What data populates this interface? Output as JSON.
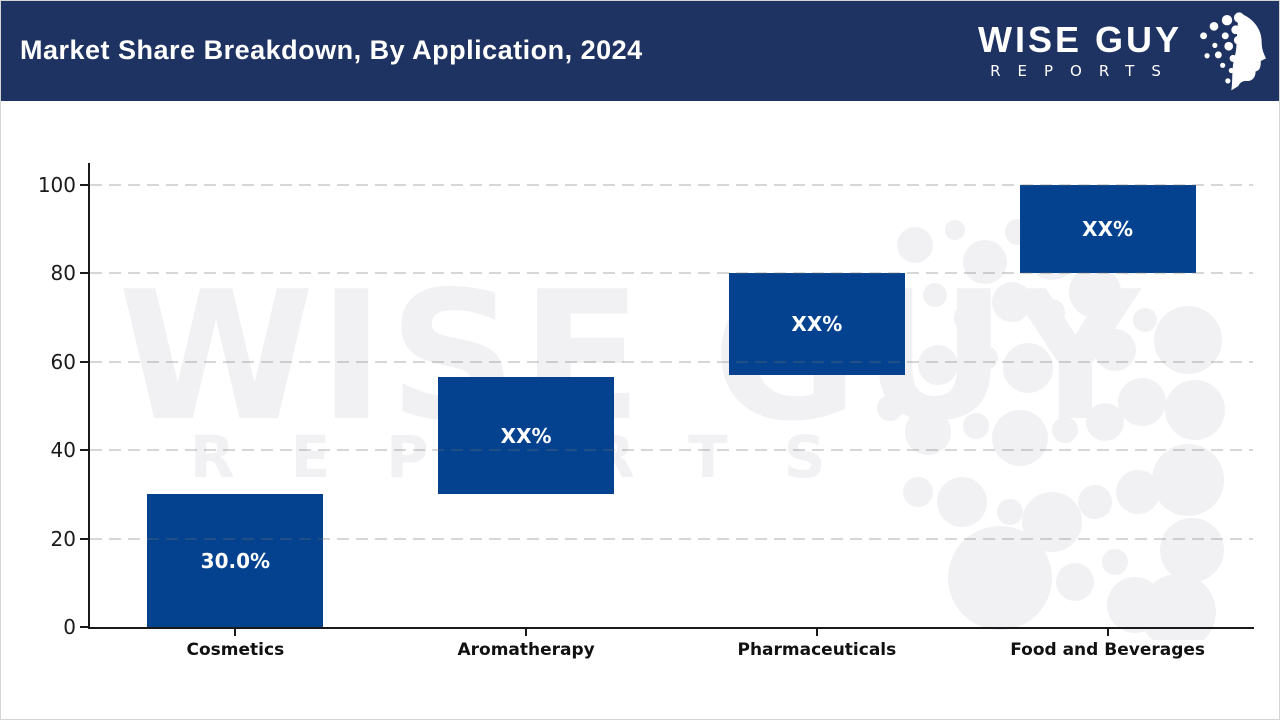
{
  "header": {
    "title": "Market Share Breakdown, By Application, 2024",
    "bg_color": "#1f3362",
    "logo": {
      "primary": "WISE GUY",
      "secondary": "REPORTS",
      "face_icon": "dotted-face-profile"
    }
  },
  "watermark": {
    "primary": "WISE GUY",
    "secondary": "REPORTS",
    "color": "#f1f1f4"
  },
  "chart_data": {
    "type": "bar",
    "variant": "waterfall",
    "title": "Market Share Breakdown, By Application, 2024",
    "categories": [
      "Cosmetics",
      "Aromatherapy",
      "Pharmaceuticals",
      "Food and Beverages"
    ],
    "series": [
      {
        "name": "Market Share",
        "segments": [
          {
            "category": "Cosmetics",
            "start": 0,
            "end": 30,
            "label": "30.0%"
          },
          {
            "category": "Aromatherapy",
            "start": 30,
            "end": 56.5,
            "label": "XX%"
          },
          {
            "category": "Pharmaceuticals",
            "start": 57,
            "end": 80,
            "label": "XX%"
          },
          {
            "category": "Food and Beverages",
            "start": 80,
            "end": 100,
            "label": "XX%"
          }
        ]
      }
    ],
    "xlabel": "",
    "ylabel": "",
    "yticks": [
      0,
      20,
      40,
      60,
      80,
      100
    ],
    "ylim": [
      0,
      105
    ],
    "grid": "horizontal-dashed-over-bars",
    "legend_position": "none",
    "bar_color": "#04428f",
    "bar_label_color": "#ffffff",
    "axis_color": "#1a1a1a"
  }
}
